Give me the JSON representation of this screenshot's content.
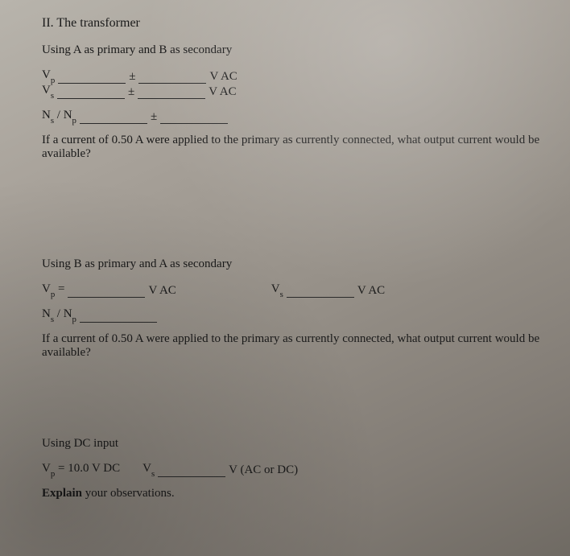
{
  "section": {
    "heading": "II.  The transformer"
  },
  "part1": {
    "intro": "Using A as primary and B as secondary",
    "vp_label_pre": "V",
    "vp_sub": "p",
    "pm": "±",
    "vac": "V AC",
    "vs_label_pre": "V",
    "vs_sub": "s",
    "ratio_pre": "N",
    "ratio_sub_s": "s",
    "ratio_slash": " / N",
    "ratio_sub_p": "p",
    "question": "If a current of 0.50 A were applied to the primary as currently connected, what output current would be available?"
  },
  "part2": {
    "intro": "Using B as primary and A as secondary",
    "vp_pre": "V",
    "vp_sub": "p",
    "eq": " = ",
    "vac": "V AC",
    "vs_pre": "V",
    "vs_sub": "s",
    "ratio_pre": "N",
    "ratio_sub_s": "s",
    "ratio_slash": " / N",
    "ratio_sub_p": "p",
    "question": "If a current of 0.50 A were applied to the primary as currently connected, what output current would be available?"
  },
  "dc": {
    "heading": "Using DC input",
    "vp_pre": "V",
    "vp_sub": "p",
    "vp_val": " = 10.0 V DC",
    "vs_pre": "V",
    "vs_sub": "s",
    "unit": "V (AC or DC)",
    "explain_bold": "Explain",
    "explain_rest": " your observations."
  }
}
